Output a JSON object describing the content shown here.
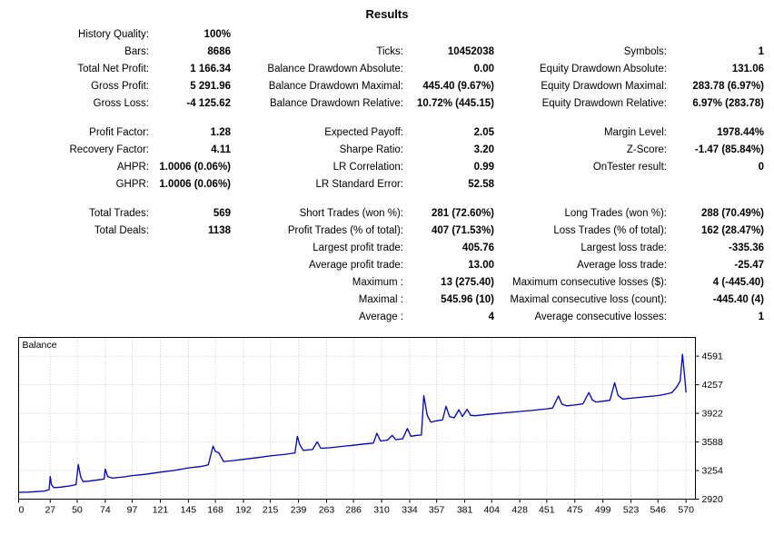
{
  "title": "Results",
  "stats": {
    "rows": [
      {
        "cells": [
          [
            "History Quality:",
            "100%"
          ],
          [
            "",
            ""
          ],
          [
            "",
            ""
          ]
        ]
      },
      {
        "cells": [
          [
            "Bars:",
            "8686"
          ],
          [
            "Ticks:",
            "10452038"
          ],
          [
            "Symbols:",
            "1"
          ]
        ]
      },
      {
        "cells": [
          [
            "Total Net Profit:",
            "1 166.34"
          ],
          [
            "Balance Drawdown Absolute:",
            "0.00"
          ],
          [
            "Equity Drawdown Absolute:",
            "131.06"
          ]
        ]
      },
      {
        "cells": [
          [
            "Gross Profit:",
            "5 291.96"
          ],
          [
            "Balance Drawdown Maximal:",
            "445.40 (9.67%)"
          ],
          [
            "Equity Drawdown Maximal:",
            "283.78 (6.97%)"
          ]
        ]
      },
      {
        "cells": [
          [
            "Gross Loss:",
            "-4 125.62"
          ],
          [
            "Balance Drawdown Relative:",
            "10.72% (445.15)"
          ],
          [
            "Equity Drawdown Relative:",
            "6.97% (283.78)"
          ]
        ]
      },
      {
        "spacer": true
      },
      {
        "cells": [
          [
            "Profit Factor:",
            "1.28"
          ],
          [
            "Expected Payoff:",
            "2.05"
          ],
          [
            "Margin Level:",
            "1978.44%"
          ]
        ]
      },
      {
        "cells": [
          [
            "Recovery Factor:",
            "4.11"
          ],
          [
            "Sharpe Ratio:",
            "3.20"
          ],
          [
            "Z-Score:",
            "-1.47 (85.84%)"
          ]
        ]
      },
      {
        "cells": [
          [
            "AHPR:",
            "1.0006 (0.06%)"
          ],
          [
            "LR Correlation:",
            "0.99"
          ],
          [
            "OnTester result:",
            "0"
          ]
        ]
      },
      {
        "cells": [
          [
            "GHPR:",
            "1.0006 (0.06%)"
          ],
          [
            "LR Standard Error:",
            "52.58"
          ],
          [
            "",
            ""
          ]
        ]
      },
      {
        "spacer": true
      },
      {
        "cells": [
          [
            "Total Trades:",
            "569"
          ],
          [
            "Short Trades (won %):",
            "281 (72.60%)"
          ],
          [
            "Long Trades (won %):",
            "288 (70.49%)"
          ]
        ]
      },
      {
        "cells": [
          [
            "Total Deals:",
            "1138"
          ],
          [
            "Profit Trades (% of total):",
            "407 (71.53%)"
          ],
          [
            "Loss Trades (% of total):",
            "162 (28.47%)"
          ]
        ]
      },
      {
        "cells": [
          [
            "",
            ""
          ],
          [
            "Largest profit trade:",
            "405.76"
          ],
          [
            "Largest loss trade:",
            "-335.36"
          ]
        ]
      },
      {
        "cells": [
          [
            "",
            ""
          ],
          [
            "Average profit trade:",
            "13.00"
          ],
          [
            "Average loss trade:",
            "-25.47"
          ]
        ]
      },
      {
        "cells": [
          [
            "",
            ""
          ],
          [
            "Maximum :",
            "13 (275.40)"
          ],
          [
            "Maximum consecutive losses ($):",
            "4 (-445.40)"
          ]
        ]
      },
      {
        "cells": [
          [
            "",
            ""
          ],
          [
            "Maximal :",
            "545.96 (10)"
          ],
          [
            "Maximal consecutive loss (count):",
            "-445.40 (4)"
          ]
        ]
      },
      {
        "cells": [
          [
            "",
            ""
          ],
          [
            "Average :",
            "4"
          ],
          [
            "Average consecutive losses:",
            "1"
          ]
        ]
      }
    ]
  },
  "chart_data": {
    "type": "line",
    "title": "Balance",
    "legend_label": "Balance",
    "xlabel": "",
    "ylabel": "",
    "grid": true,
    "legend_position": "top-left-inside",
    "line_color": "#0000bb",
    "grid_color": "#c8c8c8",
    "xlim": [
      0,
      578
    ],
    "ylim": [
      2920,
      4810
    ],
    "x_ticks": [
      0,
      27,
      50,
      74,
      97,
      121,
      145,
      168,
      192,
      215,
      239,
      263,
      286,
      310,
      334,
      357,
      381,
      404,
      428,
      451,
      475,
      499,
      523,
      546,
      570
    ],
    "y_ticks": [
      2920,
      3254,
      3588,
      3922,
      4257,
      4591
    ],
    "series": [
      {
        "name": "Balance",
        "color": "#0000bb",
        "points": [
          [
            0,
            3000
          ],
          [
            8,
            3002
          ],
          [
            16,
            3008
          ],
          [
            22,
            3015
          ],
          [
            26,
            3030
          ],
          [
            27,
            3185
          ],
          [
            28,
            3090
          ],
          [
            30,
            3055
          ],
          [
            36,
            3060
          ],
          [
            44,
            3075
          ],
          [
            49,
            3090
          ],
          [
            51,
            3325
          ],
          [
            53,
            3180
          ],
          [
            55,
            3125
          ],
          [
            60,
            3130
          ],
          [
            68,
            3145
          ],
          [
            73,
            3155
          ],
          [
            74,
            3270
          ],
          [
            76,
            3185
          ],
          [
            80,
            3165
          ],
          [
            90,
            3180
          ],
          [
            97,
            3195
          ],
          [
            108,
            3210
          ],
          [
            121,
            3235
          ],
          [
            133,
            3255
          ],
          [
            145,
            3285
          ],
          [
            155,
            3300
          ],
          [
            162,
            3320
          ],
          [
            166,
            3540
          ],
          [
            168,
            3480
          ],
          [
            171,
            3460
          ],
          [
            175,
            3360
          ],
          [
            183,
            3370
          ],
          [
            192,
            3385
          ],
          [
            204,
            3405
          ],
          [
            215,
            3425
          ],
          [
            228,
            3445
          ],
          [
            236,
            3460
          ],
          [
            238,
            3655
          ],
          [
            240,
            3560
          ],
          [
            243,
            3490
          ],
          [
            251,
            3500
          ],
          [
            255,
            3590
          ],
          [
            258,
            3515
          ],
          [
            265,
            3520
          ],
          [
            275,
            3535
          ],
          [
            286,
            3550
          ],
          [
            295,
            3565
          ],
          [
            303,
            3575
          ],
          [
            306,
            3690
          ],
          [
            309,
            3600
          ],
          [
            315,
            3610
          ],
          [
            319,
            3665
          ],
          [
            322,
            3615
          ],
          [
            328,
            3625
          ],
          [
            332,
            3745
          ],
          [
            335,
            3655
          ],
          [
            340,
            3665
          ],
          [
            344,
            3670
          ],
          [
            346,
            4130
          ],
          [
            349,
            3900
          ],
          [
            352,
            3820
          ],
          [
            357,
            3835
          ],
          [
            362,
            3845
          ],
          [
            365,
            4005
          ],
          [
            368,
            3885
          ],
          [
            372,
            3870
          ],
          [
            376,
            3965
          ],
          [
            379,
            3885
          ],
          [
            383,
            3970
          ],
          [
            386,
            3900
          ],
          [
            390,
            3895
          ],
          [
            397,
            3905
          ],
          [
            404,
            3915
          ],
          [
            416,
            3930
          ],
          [
            428,
            3945
          ],
          [
            440,
            3960
          ],
          [
            451,
            3975
          ],
          [
            456,
            3985
          ],
          [
            461,
            4125
          ],
          [
            464,
            4030
          ],
          [
            468,
            4010
          ],
          [
            475,
            4020
          ],
          [
            482,
            4035
          ],
          [
            487,
            4165
          ],
          [
            490,
            4080
          ],
          [
            493,
            4055
          ],
          [
            499,
            4065
          ],
          [
            505,
            4075
          ],
          [
            509,
            4280
          ],
          [
            512,
            4130
          ],
          [
            516,
            4090
          ],
          [
            523,
            4100
          ],
          [
            534,
            4115
          ],
          [
            546,
            4130
          ],
          [
            552,
            4145
          ],
          [
            558,
            4165
          ],
          [
            562,
            4230
          ],
          [
            565,
            4300
          ],
          [
            567,
            4612
          ],
          [
            569,
            4320
          ],
          [
            570,
            4166
          ]
        ]
      }
    ]
  }
}
